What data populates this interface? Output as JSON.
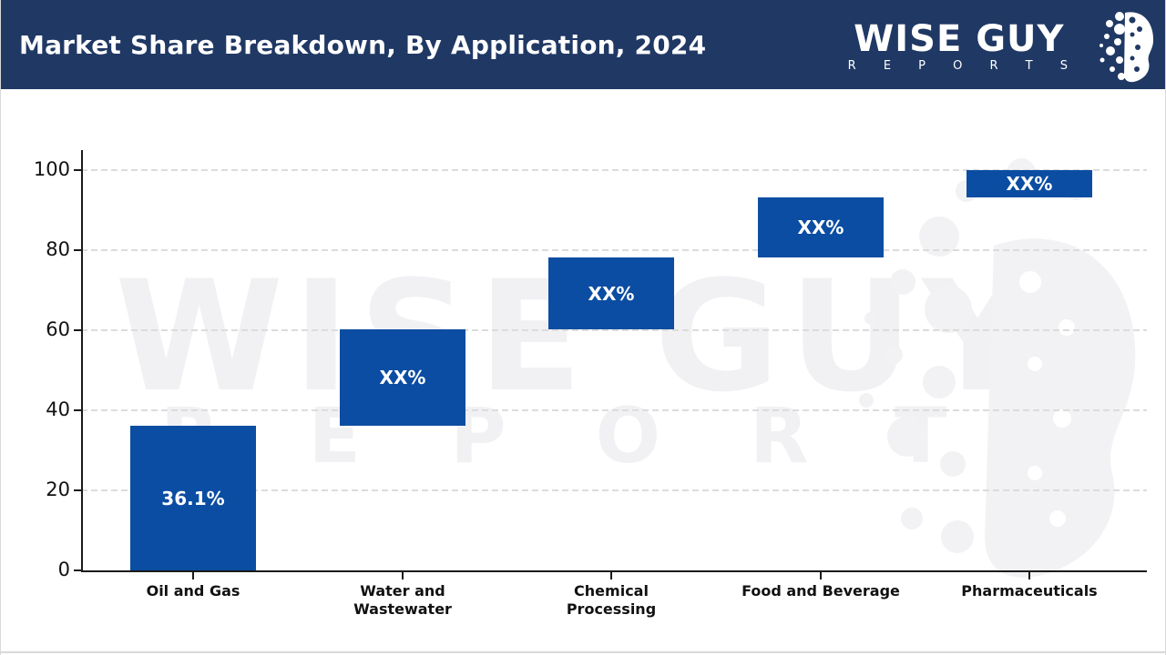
{
  "header": {
    "title": "Market Share Breakdown, By Application, 2024",
    "bg_color": "#203864",
    "logo": {
      "line1": "WISE GUY",
      "line2": "R E P O R T S"
    }
  },
  "watermark": {
    "line1": "WISE GUY",
    "line2": "REPORTS"
  },
  "chart_data": {
    "type": "bar",
    "subtype": "waterfall",
    "title": "Market Share Breakdown, By Application, 2024",
    "xlabel": "",
    "ylabel": "",
    "categories": [
      "Oil and Gas",
      "Water and\nWastewater",
      "Chemical\nProcessing",
      "Food and Beverage",
      "Pharmaceuticals"
    ],
    "segments": [
      {
        "category": "Oil and Gas",
        "start": 0,
        "end": 36.1,
        "label": "36.1%"
      },
      {
        "category": "Water and Wastewater",
        "start": 36.1,
        "end": 60.2,
        "label": "XX%"
      },
      {
        "category": "Chemical Processing",
        "start": 60.2,
        "end": 78.1,
        "label": "XX%"
      },
      {
        "category": "Food and Beverage",
        "start": 78.1,
        "end": 93.2,
        "label": "XX%"
      },
      {
        "category": "Pharmaceuticals",
        "start": 93.2,
        "end": 100,
        "label": "XX%"
      }
    ],
    "yticks": [
      0,
      20,
      40,
      60,
      80,
      100
    ],
    "ylim": [
      0,
      105
    ],
    "grid": "dashed horizontal",
    "legend": "none",
    "bar_color": "#0b4da2",
    "bar_label_color": "#ffffff"
  }
}
